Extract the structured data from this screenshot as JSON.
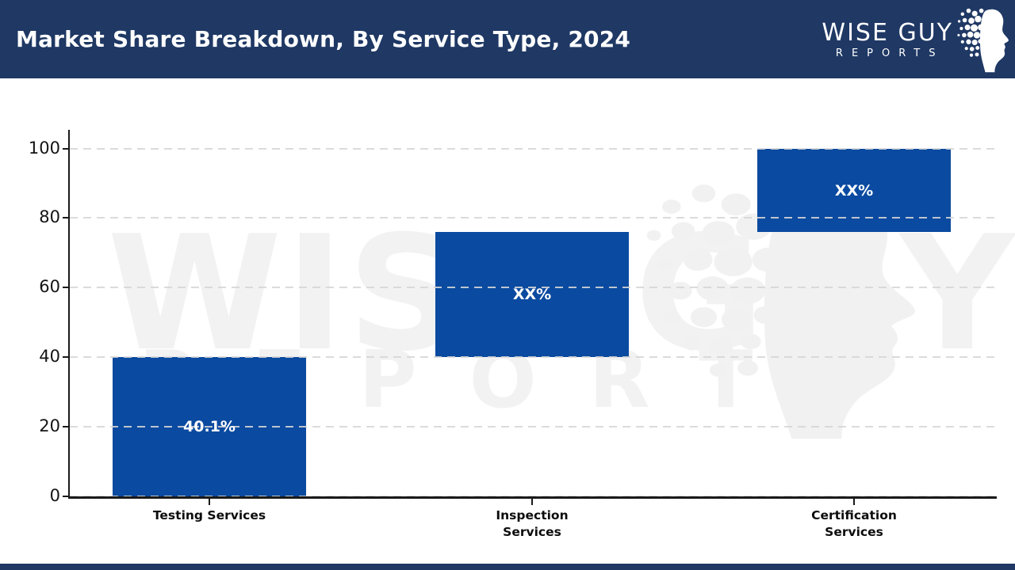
{
  "header": {
    "title": "Market Share Breakdown, By Service Type, 2024",
    "logo": {
      "brand_top": "WISE GUY",
      "brand_bottom": "REPORTS"
    }
  },
  "watermark": {
    "line1": "WISE GUY",
    "line2": "REPORTS"
  },
  "chart_data": {
    "type": "bar",
    "variant": "floating stacked segments (waterfall-style market share breakdown)",
    "title": "Market Share Breakdown, By Service Type, 2024",
    "categories": [
      "Testing Services",
      "Inspection Services",
      "Certification Services"
    ],
    "tick_label_lines": [
      [
        "Testing Services"
      ],
      [
        "Inspection",
        "Services"
      ],
      [
        "Certification",
        "Services"
      ]
    ],
    "segments": [
      {
        "category": "Testing Services",
        "start": 0,
        "end": 40.1,
        "label": "40.1%"
      },
      {
        "category": "Inspection Services",
        "start": 40.1,
        "end": 75.9,
        "label": "XX%"
      },
      {
        "category": "Certification Services",
        "start": 75.9,
        "end": 100,
        "label": "XX%"
      }
    ],
    "yticks": [
      0,
      20,
      40,
      60,
      80,
      100
    ],
    "ylim": [
      0,
      105
    ],
    "xlabel": "",
    "ylabel": "",
    "grid": "dashed horizontal, drawn above bars",
    "legend": "none",
    "bar_color": "#0a4aa0",
    "bar_label_color": "#ffffff",
    "axis_color": "#1a1a1a",
    "gridline_color": "#d6d6d6"
  },
  "colors": {
    "header_bg": "#1f3864",
    "footer_bg": "#1f3864",
    "page_bg": "#ffffff",
    "watermark": "#f2f2f2"
  }
}
